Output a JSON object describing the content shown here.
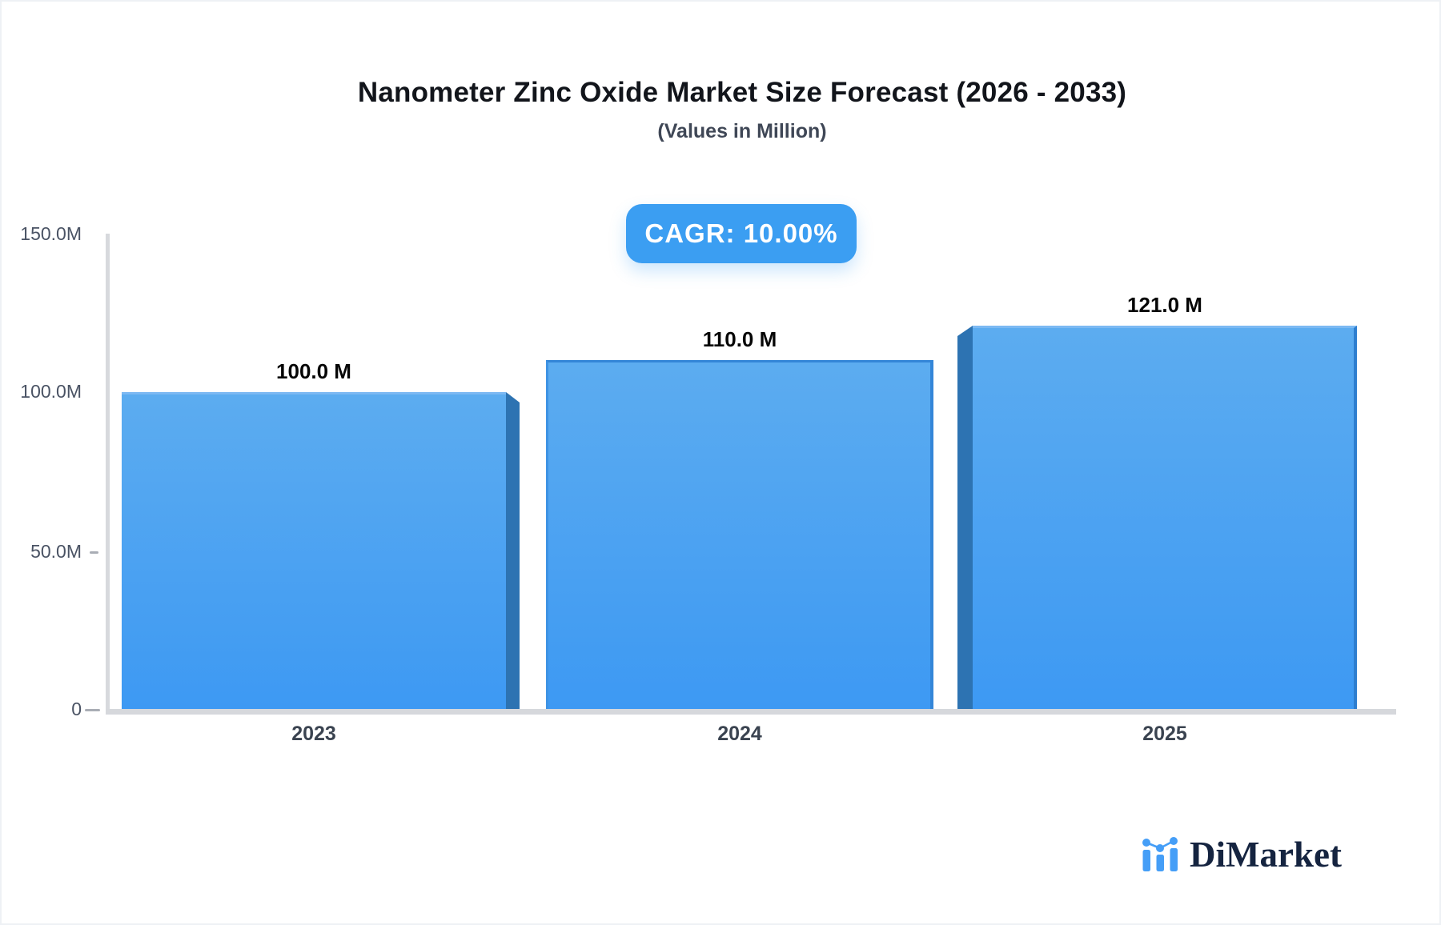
{
  "title": "Nanometer Zinc Oxide Market Size Forecast (2026 - 2033)",
  "subtitle": "(Values in Million)",
  "badge": {
    "label": "CAGR: 10.00%",
    "bg_color": "#3b9ef2"
  },
  "chart_data": {
    "type": "bar",
    "categories": [
      "2023",
      "2024",
      "2025"
    ],
    "values": [
      100.0,
      110.0,
      121.0
    ],
    "bar_labels": [
      "100.0 M",
      "110.0 M",
      "121.0 M"
    ],
    "unit": "Million",
    "y_ticks": [
      "150.0M",
      "100.0M",
      "50.0M",
      "0"
    ],
    "ylim": [
      0,
      150
    ],
    "grid": false,
    "bar_color_top": "#5cacf0",
    "bar_color_bottom": "#3d99f3",
    "bar_side_color": "#2d73b2",
    "axis_color": "#d7d9dd"
  },
  "logo": {
    "text": "DiMarket",
    "icon": "bar-chart-trend-icon",
    "icon_color": "#459ef7",
    "text_color": "#152440"
  }
}
